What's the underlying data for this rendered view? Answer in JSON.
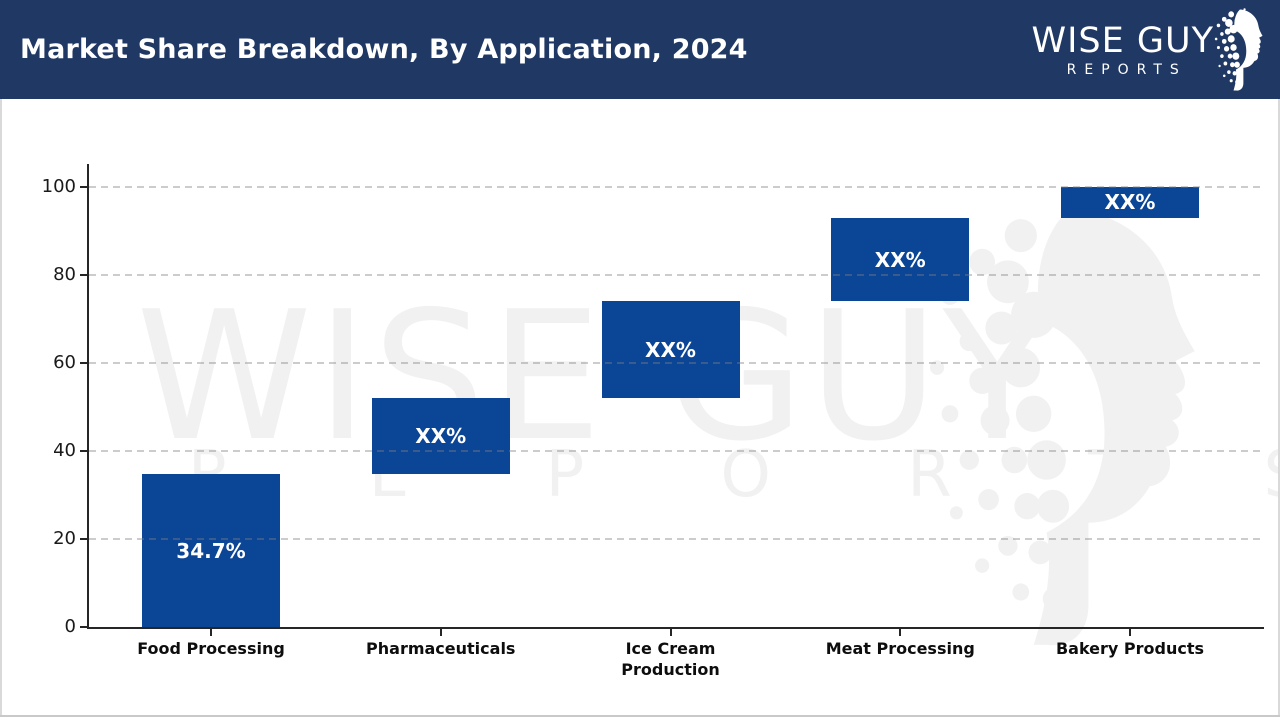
{
  "header": {
    "title": "Market Share Breakdown, By Application, 2024",
    "background": "#203864",
    "logo": {
      "line1": "WISE GUY",
      "line2": "REPORTS"
    }
  },
  "watermark": {
    "line1": "WISE GUY",
    "line2": "R E P O R T S"
  },
  "chart_data": {
    "type": "bar",
    "subtype": "floating-waterfall",
    "title": "Market Share Breakdown, By Application, 2024",
    "categories": [
      "Food Processing",
      "Pharmaceuticals",
      "Ice Cream Production",
      "Meat Processing",
      "Bakery Products"
    ],
    "segments": [
      {
        "start": 0,
        "end": 34.7
      },
      {
        "start": 34.7,
        "end": 52
      },
      {
        "start": 52,
        "end": 74
      },
      {
        "start": 74,
        "end": 93
      },
      {
        "start": 93,
        "end": 100
      }
    ],
    "bar_labels": [
      "34.7%",
      "XX%",
      "XX%",
      "XX%",
      "XX%"
    ],
    "yticks": [
      0,
      20,
      40,
      60,
      80,
      100
    ],
    "ylim": [
      0,
      105
    ],
    "xlabel": "",
    "ylabel": "",
    "legend": null,
    "grid": {
      "style": "dashed",
      "axis": "y"
    },
    "colors": {
      "bar": "#0b4596",
      "header_background": "#203864",
      "bar_label_text": "#ffffff",
      "axis": "#262626",
      "watermark": "#f1f1f1"
    }
  }
}
